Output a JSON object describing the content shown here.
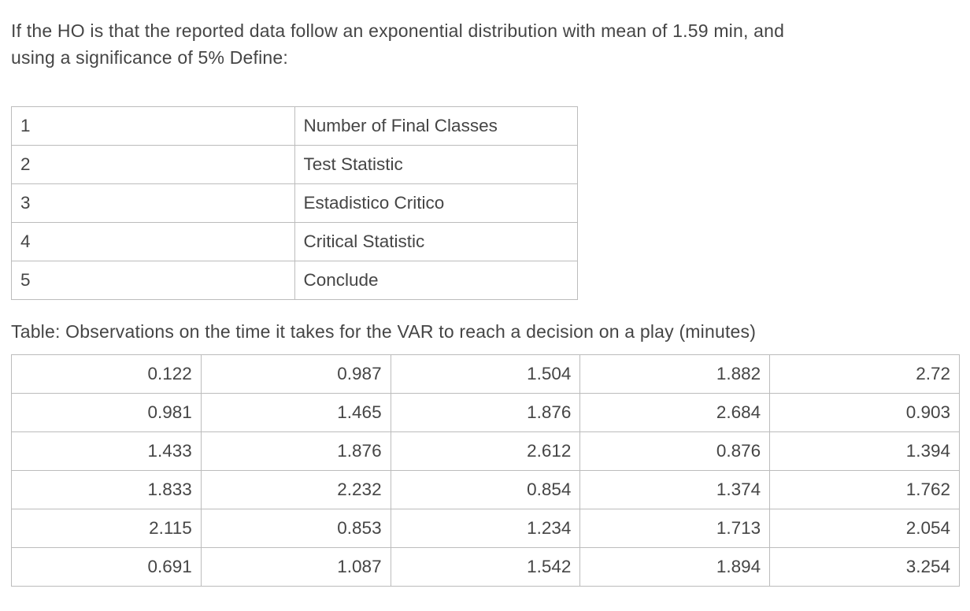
{
  "heading": {
    "line1": "If the HO is that the reported data follow an exponential distribution with mean of 1.59 min, and",
    "line2": "using a significance of 5% Define:"
  },
  "define": {
    "rows": [
      {
        "num": "1",
        "label": "Number of Final Classes"
      },
      {
        "num": "2",
        "label": "Test Statistic"
      },
      {
        "num": "3",
        "label": "Estadistico Critico"
      },
      {
        "num": "4",
        "label": "Critical Statistic"
      },
      {
        "num": "5",
        "label": "Conclude"
      }
    ]
  },
  "observations": {
    "caption": "Table: Observations on the time it takes for the VAR to reach a decision on a play (minutes)",
    "rows": [
      [
        "0.122",
        "0.987",
        "1.504",
        "1.882",
        "2.72"
      ],
      [
        "0.981",
        "1.465",
        "1.876",
        "2.684",
        "0.903"
      ],
      [
        "1.433",
        "1.876",
        "2.612",
        "0.876",
        "1.394"
      ],
      [
        "1.833",
        "2.232",
        "0.854",
        "1.374",
        "1.762"
      ],
      [
        "2.115",
        "0.853",
        "1.234",
        "1.713",
        "2.054"
      ],
      [
        "0.691",
        "1.087",
        "1.542",
        "1.894",
        "3.254"
      ]
    ]
  },
  "colors": {
    "text": "#454545",
    "border": "#bcbcbc",
    "background": "#ffffff"
  }
}
